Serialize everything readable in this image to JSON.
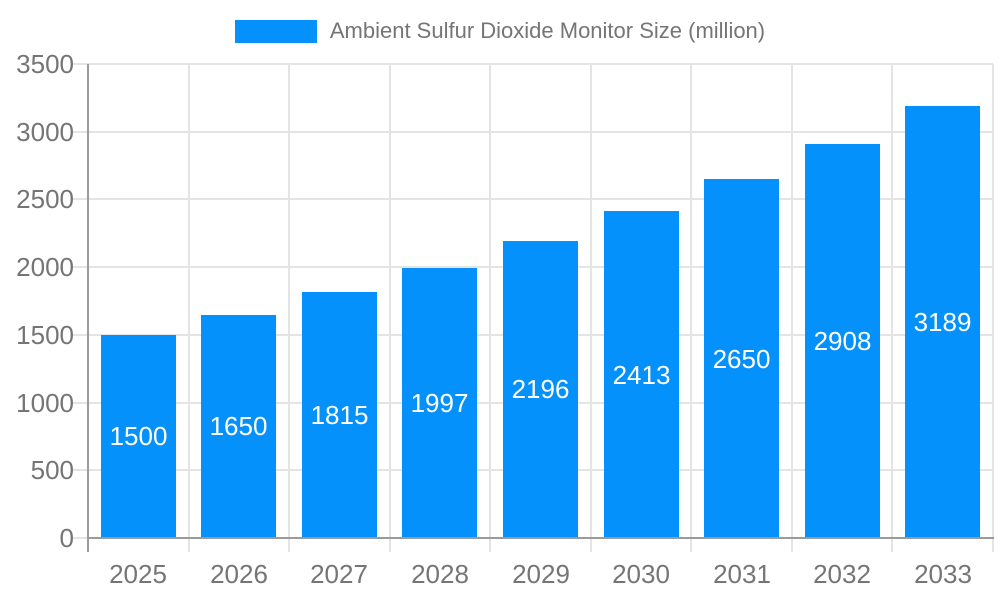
{
  "legend": {
    "label": "Ambient Sulfur Dioxide Monitor Size (million)"
  },
  "colors": {
    "bar": "#0591fb",
    "axis_line": "#9a9a9a",
    "gridline": "#e4e4e4",
    "axis_label": "#757575",
    "bar_label": "#ffffff",
    "legend_text": "#757575",
    "background": "#ffffff"
  },
  "chart_data": {
    "type": "bar",
    "title": "Ambient Sulfur Dioxide Monitor Size (million)",
    "categories": [
      "2025",
      "2026",
      "2027",
      "2028",
      "2029",
      "2030",
      "2031",
      "2032",
      "2033"
    ],
    "series": [
      {
        "name": "Ambient Sulfur Dioxide Monitor Size (million)",
        "values": [
          1500,
          1650,
          1815,
          1997,
          2196,
          2413,
          2650,
          2908,
          3189
        ],
        "color": "#0591fb"
      }
    ],
    "value_labels": {
      "position": "inside-center",
      "color": "#ffffff"
    },
    "xlabel": "",
    "ylabel": "",
    "ylim": [
      0,
      3500
    ],
    "yticks": [
      0,
      500,
      1000,
      1500,
      2000,
      2500,
      3000,
      3500
    ],
    "grid": {
      "horizontal": true,
      "vertical": true
    },
    "legend_position": "top-center"
  }
}
